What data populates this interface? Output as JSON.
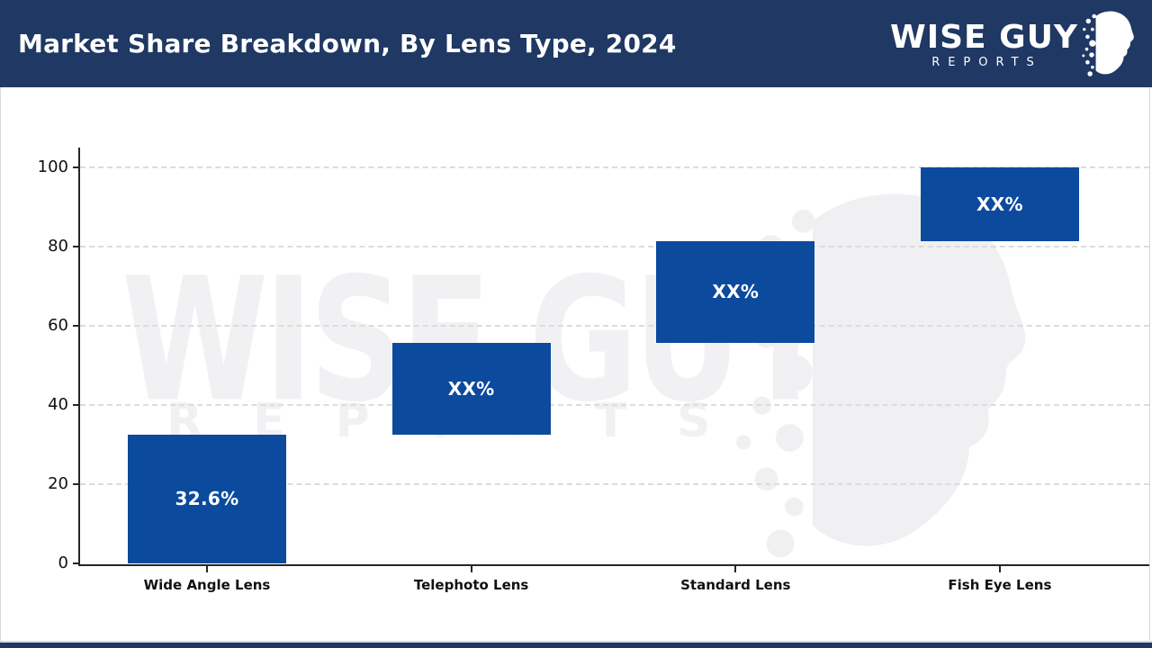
{
  "header": {
    "title": "Market Share Breakdown, By Lens Type, 2024",
    "logo": {
      "line1": "WISE GUY",
      "line2": "REPORTS"
    }
  },
  "watermark": {
    "line1": "WISE GUY",
    "line2": "REPORTS"
  },
  "chart_data": {
    "type": "bar",
    "subtype": "waterfall",
    "title": "Market Share Breakdown, By Lens Type, 2024",
    "categories": [
      "Wide Angle Lens",
      "Telephoto Lens",
      "Standard Lens",
      "Fish Eye Lens"
    ],
    "segments": [
      {
        "category": "Wide Angle Lens",
        "start": 0,
        "end": 32.6,
        "label": "32.6%"
      },
      {
        "category": "Telephoto Lens",
        "start": 32.6,
        "end": 55.7,
        "label": "XX%"
      },
      {
        "category": "Standard Lens",
        "start": 55.7,
        "end": 81.4,
        "label": "XX%"
      },
      {
        "category": "Fish Eye Lens",
        "start": 81.4,
        "end": 100,
        "label": "XX%"
      }
    ],
    "yticks": [
      0,
      20,
      40,
      60,
      80,
      100
    ],
    "ylim": [
      0,
      100
    ],
    "xlabel": "",
    "ylabel": "",
    "grid": "horizontal-dashed",
    "legend": "none"
  },
  "colors": {
    "header_bg": "#1f3864",
    "footer_bg": "#1f3864",
    "bar": "#0c4a9e",
    "bar_label": "#ffffff",
    "grid": "#dcdcdc",
    "axis": "#262626",
    "watermark": "#f1f1f4"
  }
}
